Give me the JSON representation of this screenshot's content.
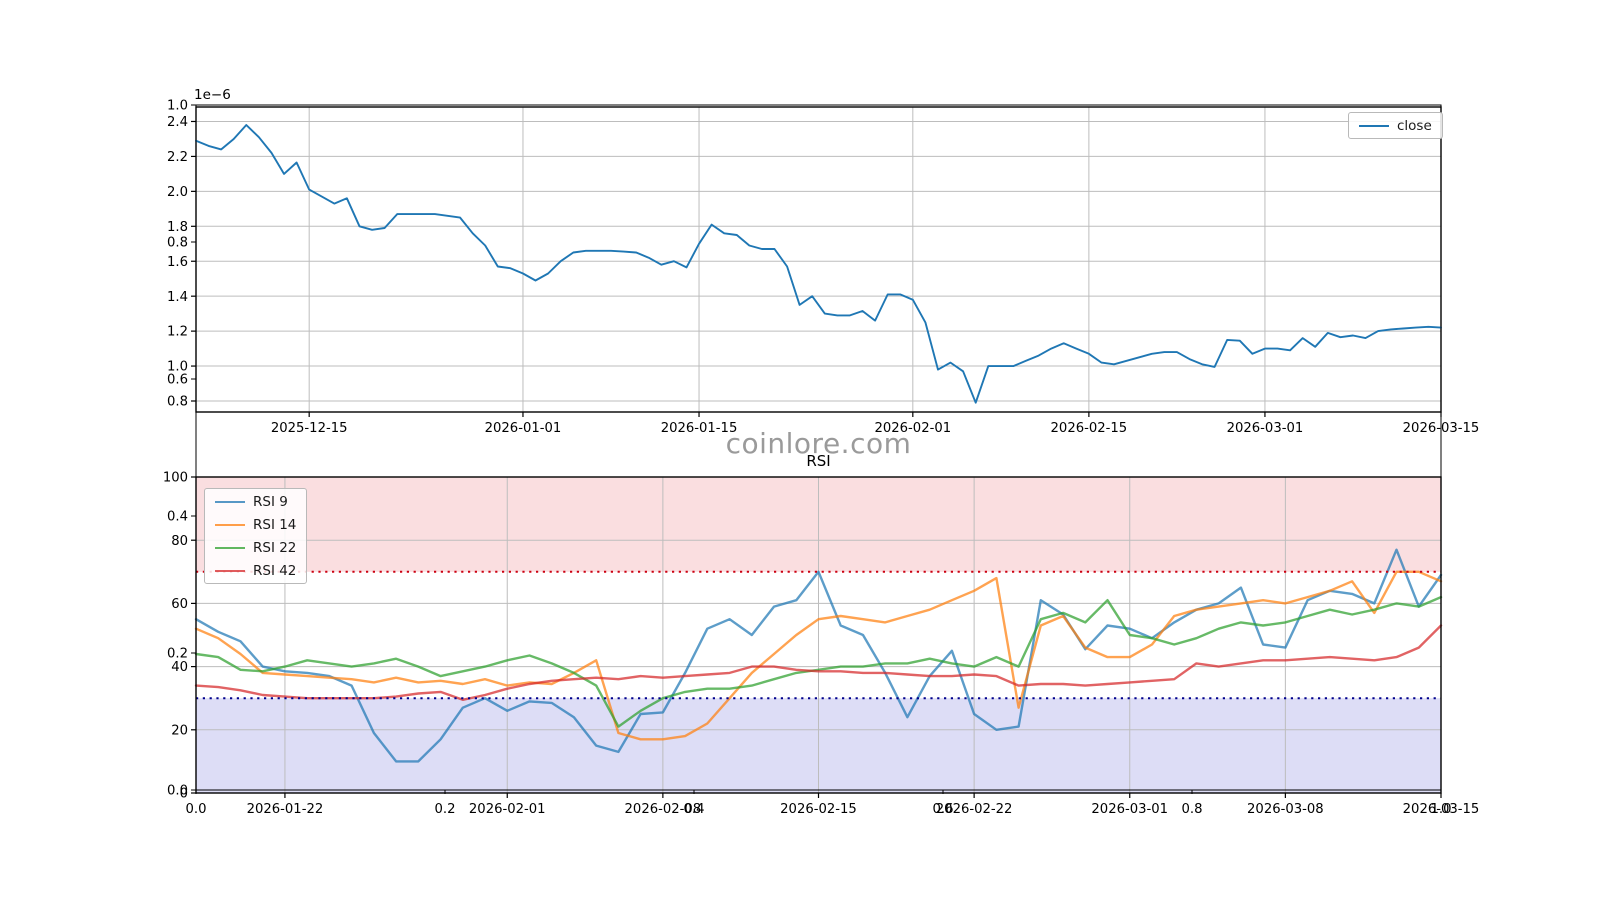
{
  "watermark": "coinlore.com",
  "top_chart": {
    "offset_text": "1e−6"
  },
  "hidden_axis": {
    "x_labels": [
      "0.0",
      "0.2",
      "0.4",
      "0.6",
      "0.8",
      "1.0"
    ],
    "y_labels": [
      "1.0",
      "0.8",
      "0.6",
      "0.4",
      "0.2",
      "0.0"
    ]
  },
  "chart_data": [
    {
      "type": "line",
      "title": "",
      "legend": [
        "close"
      ],
      "legend_position": "upper right",
      "grid": true,
      "y_unit": "1e-6",
      "ylim": [
        0.74,
        2.48
      ],
      "y_ticks": [
        0.8,
        1.0,
        1.2,
        1.4,
        1.6,
        1.8,
        2.0,
        2.2,
        2.4
      ],
      "x_start_date": "2025-12-06",
      "x_tick_labels": [
        "2025-12-15",
        "2026-01-01",
        "2026-01-15",
        "2026-02-01",
        "2026-02-15",
        "2026-03-01",
        "2026-03-15"
      ],
      "x_tick_day_index": [
        9,
        26,
        40,
        57,
        71,
        85,
        99
      ],
      "series": [
        {
          "name": "close",
          "color": "#1f77b4",
          "values": [
            2.29,
            2.26,
            2.24,
            2.3,
            2.38,
            2.31,
            2.22,
            2.1,
            2.165,
            2.01,
            1.97,
            1.93,
            1.96,
            1.8,
            1.78,
            1.79,
            1.87,
            1.87,
            1.87,
            1.87,
            1.86,
            1.85,
            1.76,
            1.69,
            1.57,
            1.56,
            1.53,
            1.49,
            1.53,
            1.6,
            1.65,
            1.66,
            1.66,
            1.66,
            1.655,
            1.65,
            1.62,
            1.58,
            1.6,
            1.565,
            1.7,
            1.81,
            1.76,
            1.75,
            1.69,
            1.67,
            1.67,
            1.57,
            1.35,
            1.4,
            1.3,
            1.29,
            1.29,
            1.315,
            1.26,
            1.41,
            1.41,
            1.38,
            1.25,
            0.98,
            1.02,
            0.97,
            0.79,
            1.0,
            1.0,
            1.0,
            1.03,
            1.06,
            1.1,
            1.13,
            1.1,
            1.07,
            1.02,
            1.01,
            1.03,
            1.05,
            1.07,
            1.08,
            1.08,
            1.04,
            1.01,
            0.995,
            1.15,
            1.145,
            1.07,
            1.1,
            1.1,
            1.09,
            1.16,
            1.11,
            1.19,
            1.165,
            1.175,
            1.16,
            1.2,
            1.21,
            1.215,
            1.22,
            1.225,
            1.22
          ]
        }
      ]
    },
    {
      "type": "line",
      "title": "RSI",
      "grid": true,
      "ylim": [
        0,
        100
      ],
      "y_ticks": [
        0,
        20,
        40,
        60,
        80,
        100
      ],
      "overbought_level": 70,
      "oversold_level": 30,
      "bands": [
        {
          "name": "overbought-zone",
          "from": 70,
          "to": 100,
          "color": "#e03040",
          "opacity": 0.16
        },
        {
          "name": "oversold-zone",
          "from": 0,
          "to": 30,
          "color": "#4444cc",
          "opacity": 0.18
        }
      ],
      "hlines": [
        {
          "name": "overbought-line",
          "y": 70,
          "color": "#cc0011",
          "style": "dotted"
        },
        {
          "name": "oversold-line",
          "y": 30,
          "color": "#00008b",
          "style": "dotted"
        }
      ],
      "x_start_date": "2026-01-18",
      "x_tick_labels": [
        "2026-01-22",
        "2026-02-01",
        "2026-02-08",
        "2026-02-15",
        "2026-02-22",
        "2026-03-01",
        "2026-03-08",
        "2026-03-15"
      ],
      "x_tick_day_index": [
        4,
        14,
        21,
        28,
        35,
        42,
        49,
        56
      ],
      "series": [
        {
          "name": "RSI 9",
          "color": "#1f77b4",
          "values": [
            55,
            51,
            48,
            40,
            38.5,
            38,
            37,
            34,
            19,
            10,
            10,
            17,
            27,
            30,
            26,
            29,
            28.5,
            24,
            15,
            13,
            25,
            25.5,
            38,
            52,
            55,
            50,
            59,
            61,
            70,
            53,
            50,
            38,
            24,
            37,
            45,
            25,
            20,
            21,
            61,
            56.5,
            45.5,
            53,
            52,
            49,
            54,
            58,
            60,
            65,
            47,
            46,
            61,
            64,
            63,
            60,
            77,
            59,
            69
          ]
        },
        {
          "name": "RSI 14",
          "color": "#ff7f0e",
          "values": [
            52,
            49,
            44,
            38,
            37.5,
            37,
            36.5,
            36,
            35,
            36.5,
            35,
            35.5,
            34.5,
            36,
            34,
            35,
            34.5,
            38,
            42,
            19,
            17,
            17,
            18,
            22,
            30,
            38,
            44,
            50,
            55,
            56,
            55,
            54,
            56,
            58,
            61,
            64,
            68,
            27,
            53,
            56,
            46,
            43,
            43,
            47,
            56,
            58,
            59,
            60,
            61,
            60,
            62,
            64,
            67,
            57,
            70,
            70,
            67
          ]
        },
        {
          "name": "RSI 22",
          "color": "#2ca02c",
          "values": [
            44,
            43,
            39,
            38.5,
            40,
            42,
            41,
            40,
            41,
            42.5,
            40,
            37,
            38.5,
            40,
            42,
            43.5,
            41,
            38,
            34,
            21,
            26,
            30,
            32,
            33,
            33,
            34,
            36,
            38,
            39,
            40,
            40,
            41,
            41,
            42.5,
            41,
            40,
            43,
            40,
            55,
            57,
            54,
            61,
            50,
            49,
            47,
            49,
            52,
            54,
            53,
            54,
            56,
            58,
            56.5,
            58,
            60,
            59,
            62
          ]
        },
        {
          "name": "RSI 42",
          "color": "#d62728",
          "values": [
            34,
            33.5,
            32.5,
            31,
            30.5,
            30,
            30,
            30,
            30,
            30.5,
            31.5,
            32,
            29.5,
            31,
            33,
            34.5,
            35.5,
            36,
            36.5,
            36,
            37,
            36.5,
            37,
            37.5,
            38,
            40,
            40,
            39,
            38.5,
            38.5,
            38,
            38,
            37.5,
            37,
            37,
            37.5,
            37,
            34,
            34.5,
            34.5,
            34,
            34.5,
            35,
            35.5,
            36,
            41,
            40,
            41,
            42,
            42,
            42.5,
            43,
            42.5,
            42,
            43,
            46,
            53
          ]
        }
      ]
    }
  ]
}
